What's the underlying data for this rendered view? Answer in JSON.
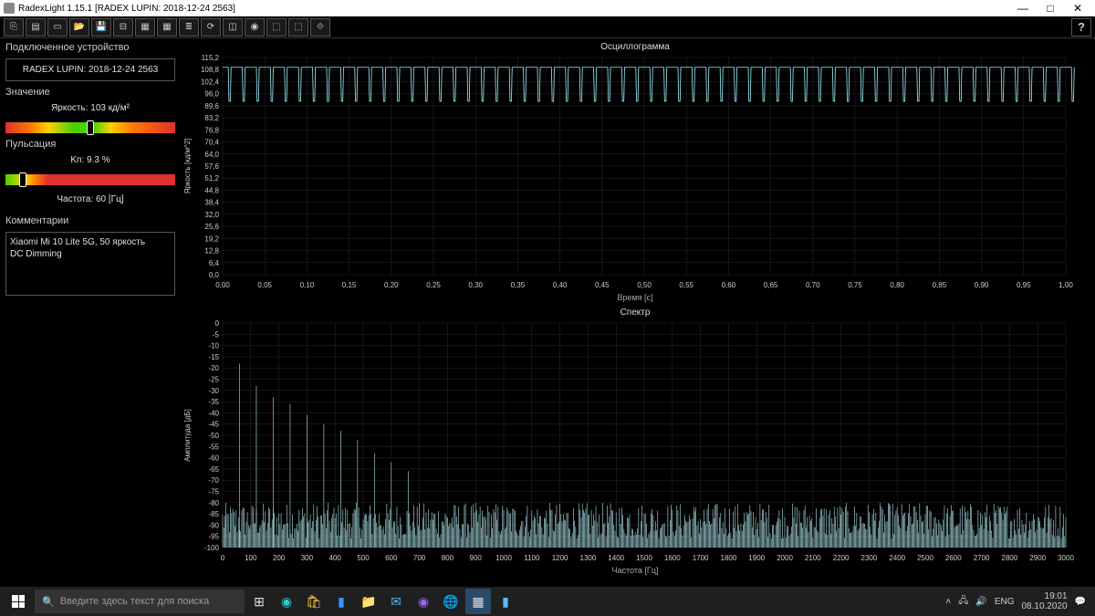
{
  "window": {
    "title": "RadexLight 1.15.1 [RADEX LUPIN: 2018-12-24 2563]",
    "min": "—",
    "max": "□",
    "close": "✕"
  },
  "toolbar_icons": [
    "⎘",
    "▤",
    "▭",
    "📂",
    "💾",
    "⊟",
    "▦",
    "▦",
    "≣",
    "⟳",
    "◫",
    "◉",
    "⬚",
    "⬚",
    "⟐"
  ],
  "help": "?",
  "sidebar": {
    "device_label": "Подключенное устройство",
    "device_value": "RADEX LUPIN: 2018-12-24 2563",
    "value_label": "Значение",
    "brightness": "Яркость: 103 кд/м²",
    "brightness_marker_pct": 48,
    "pulsation_label": "Пульсация",
    "kp": "Kп: 9.3 %",
    "pulsation_marker_pct": 8,
    "frequency": "Частота: 60 [Гц]",
    "comments_label": "Комментарии",
    "comments_line1": "Xiaomi Mi 10 Lite 5G, 50 яркость",
    "comments_line2": "DC Dimming"
  },
  "chart1": {
    "title": "Осциллограмма",
    "ylabel": "Яркость [кд/м^2]",
    "xlabel": "Время [с]",
    "y_min": 0,
    "y_max": 115.2,
    "y_ticks": [
      0,
      6.4,
      12.8,
      19.2,
      25.6,
      32.0,
      38.4,
      44.8,
      51.2,
      57.6,
      64.0,
      70.4,
      76.8,
      83.2,
      89.6,
      96.0,
      102.4,
      108.8,
      115.2
    ],
    "x_min": 0,
    "x_max": 1.0,
    "x_ticks": [
      0.0,
      0.05,
      0.1,
      0.15,
      0.2,
      0.25,
      0.3,
      0.35,
      0.4,
      0.45,
      0.5,
      0.55,
      0.6,
      0.65,
      0.7,
      0.75,
      0.8,
      0.85,
      0.9,
      0.95,
      1.0
    ],
    "wave_high": 110,
    "wave_low": 92,
    "wave_periods": 60,
    "stroke": "#a0f0ff",
    "grid": "#2a2a2a",
    "bg": "#000000"
  },
  "chart2": {
    "title": "Спектр",
    "ylabel": "Амплитуда [дБ]",
    "xlabel": "Частота [Гц]",
    "y_min": -100,
    "y_max": 0,
    "y_ticks": [
      0,
      -5,
      -10,
      -15,
      -20,
      -25,
      -30,
      -35,
      -40,
      -45,
      -50,
      -55,
      -60,
      -65,
      -70,
      -75,
      -80,
      -85,
      -90,
      -95,
      -100
    ],
    "x_min": 0,
    "x_max": 3000,
    "x_ticks": [
      0,
      100,
      200,
      300,
      400,
      500,
      600,
      700,
      800,
      900,
      1000,
      1100,
      1200,
      1300,
      1400,
      1500,
      1600,
      1700,
      1800,
      1900,
      2000,
      2100,
      2200,
      2300,
      2400,
      2500,
      2600,
      2700,
      2800,
      2900,
      3000
    ],
    "peaks": [
      {
        "f": 60,
        "db": -18
      },
      {
        "f": 120,
        "db": -28
      },
      {
        "f": 180,
        "db": -33
      },
      {
        "f": 240,
        "db": -36
      },
      {
        "f": 300,
        "db": -41
      },
      {
        "f": 360,
        "db": -45
      },
      {
        "f": 420,
        "db": -48
      },
      {
        "f": 480,
        "db": -52
      },
      {
        "f": 540,
        "db": -58
      },
      {
        "f": 600,
        "db": -62
      },
      {
        "f": 660,
        "db": -66
      }
    ],
    "noise_floor": -88,
    "noise_jitter": 8,
    "stroke": "#b0e8f0",
    "grid": "#2a2a2a",
    "bg": "#000000"
  },
  "taskbar": {
    "search_placeholder": "Введите здесь текст для поиска",
    "lang": "ENG",
    "time": "19:01",
    "date": "08.10.2020"
  }
}
